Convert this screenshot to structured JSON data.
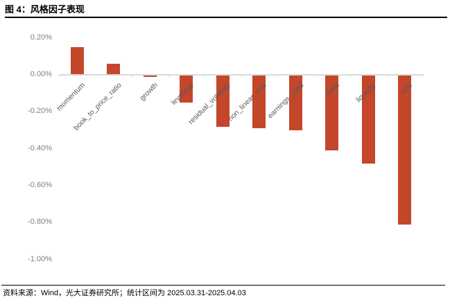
{
  "title": "图 4：风格因子表现",
  "footer": {
    "source_text": "资料来源：Wind，光大证券研究所；统计区间为 2025.03.31-2025.04.03"
  },
  "colors": {
    "bar": "#C4462B",
    "axis": "#D9D9D9",
    "y_label": "#7F7F7F",
    "category_label": "#595959",
    "title_text": "#000000",
    "divider": "#000000",
    "background": "#FFFFFF"
  },
  "chart_data": {
    "type": "bar",
    "title": "风格因子表现",
    "categories": [
      "momentum",
      "book_to_price_ratio",
      "growth",
      "leverage",
      "residual_volatility",
      "non_linear_size",
      "earnings_yield",
      "beta",
      "liquidity",
      "size"
    ],
    "values": [
      0.15,
      0.06,
      -0.01,
      -0.15,
      -0.28,
      -0.29,
      -0.3,
      -0.41,
      -0.48,
      -0.81
    ],
    "unit": "%",
    "xlabel": "",
    "ylabel": "",
    "y_ticks": [
      0.2,
      0.0,
      -0.2,
      -0.4,
      -0.6,
      -0.8,
      -1.0
    ],
    "y_tick_labels": [
      "0.20%",
      "0.00%",
      "-0.20%",
      "-0.40%",
      "-0.60%",
      "-0.80%",
      "-1.00%"
    ],
    "ylim": [
      -1.0,
      0.2
    ],
    "grid": false,
    "legend": null,
    "bar_color": "#C4462B",
    "category_label_rotation_deg": -45
  }
}
